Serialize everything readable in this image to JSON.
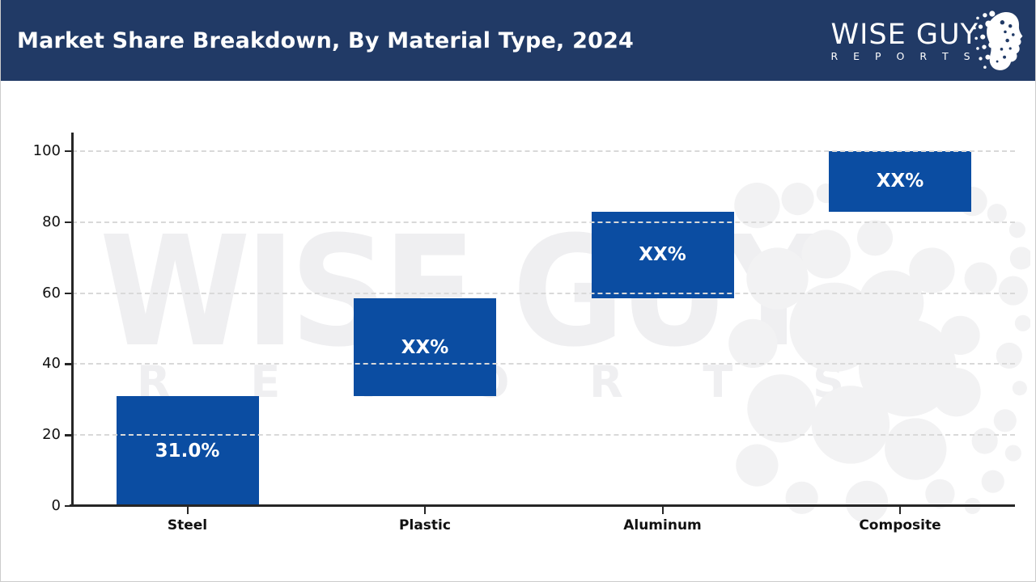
{
  "header": {
    "title": "Market Share Breakdown, By Material Type, 2024",
    "logo": {
      "line1": "WISE GUY",
      "line2": "R E P O R T S"
    }
  },
  "watermark": {
    "line1": "WISE GUY",
    "line2": "R E P O R T S"
  },
  "colors": {
    "header_bg": "#213a66",
    "bar": "#0b4da2",
    "grid": "#d9d9d9",
    "axis": "#262626",
    "watermark": "#efeff1",
    "bar_label_text": "#ffffff",
    "title_text": "#ffffff"
  },
  "chart_data": {
    "type": "bar",
    "subtype": "waterfall",
    "title": "Market Share Breakdown, By Material Type, 2024",
    "categories": [
      "Steel",
      "Plastic",
      "Aluminum",
      "Composite"
    ],
    "segments": [
      {
        "category": "Steel",
        "start": 0,
        "end": 31.0,
        "value": 31.0,
        "label": "31.0%"
      },
      {
        "category": "Plastic",
        "start": 31.0,
        "end": 58.5,
        "value": 27.5,
        "label": "XX%"
      },
      {
        "category": "Aluminum",
        "start": 58.5,
        "end": 83.0,
        "value": 24.5,
        "label": "XX%"
      },
      {
        "category": "Composite",
        "start": 83.0,
        "end": 100.0,
        "value": 17.0,
        "label": "XX%"
      }
    ],
    "yticks": [
      0,
      20,
      40,
      60,
      80,
      100
    ],
    "ylim": [
      0,
      105
    ],
    "xlabel": "",
    "ylabel": "",
    "grid": "horizontal-dashed",
    "legend": "none",
    "bar_color": "#0b4da2"
  }
}
